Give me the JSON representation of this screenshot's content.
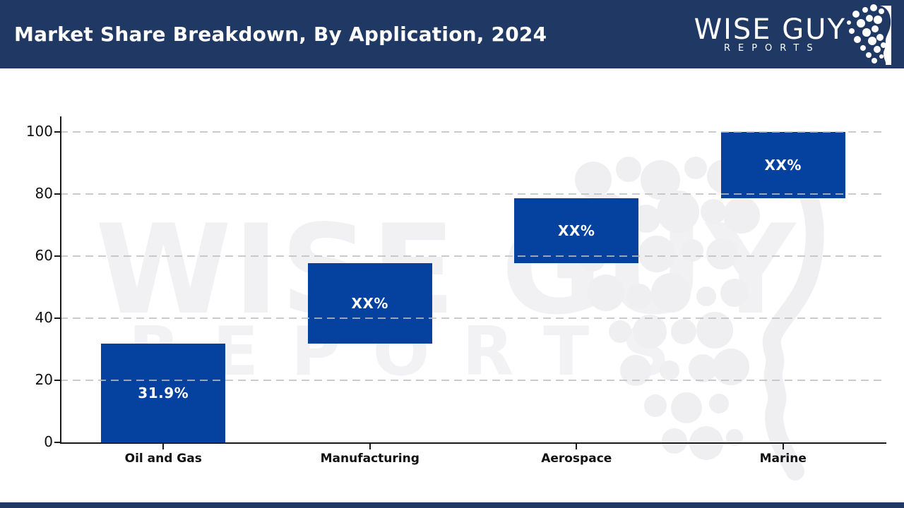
{
  "header": {
    "title": "Market Share Breakdown, By Application, 2024",
    "logo": {
      "primary": "WISE GUY",
      "secondary": "REPORTS"
    }
  },
  "watermark": {
    "line1": "WISE GUY",
    "line2": "REPORTS"
  },
  "footer": {},
  "colors": {
    "header_bg": "#1f3864",
    "footer_bg": "#1f3864",
    "bar": "#05419f",
    "grid": "#d9d9d9",
    "axis": "#1a1a1a",
    "bar_label": "#ffffff",
    "watermark": "#f1f1f3"
  },
  "chart_data": {
    "type": "bar",
    "subtype": "waterfall",
    "title": "Market Share Breakdown, By Application, 2024",
    "xlabel": "",
    "ylabel": "",
    "categories": [
      "Oil and Gas",
      "Manufacturing",
      "Aerospace",
      "Marine"
    ],
    "segments": [
      {
        "category": "Oil and Gas",
        "start": 0,
        "end": 31.9,
        "label": "31.9%"
      },
      {
        "category": "Manufacturing",
        "start": 31.9,
        "end": 57.7,
        "label": "XX%"
      },
      {
        "category": "Aerospace",
        "start": 57.7,
        "end": 78.6,
        "label": "XX%"
      },
      {
        "category": "Marine",
        "start": 78.6,
        "end": 100,
        "label": "XX%"
      }
    ],
    "y_ticks": [
      0,
      20,
      40,
      60,
      80,
      100
    ],
    "ylim": [
      0,
      105
    ],
    "grid": "horizontal-dashed",
    "legend": "none"
  }
}
